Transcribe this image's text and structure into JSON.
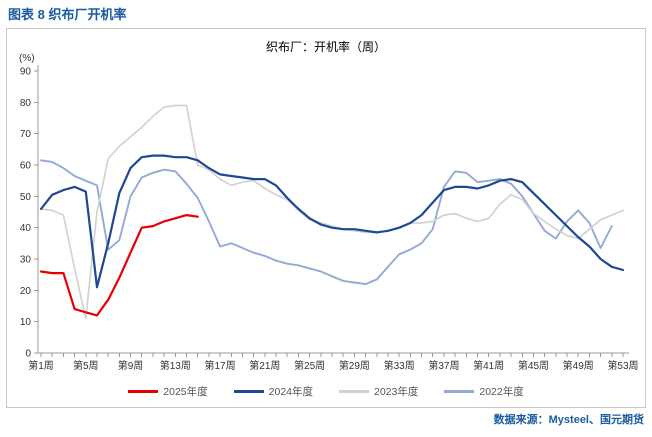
{
  "figure": {
    "title": "图表 8 织布厂开机率"
  },
  "chart": {
    "title": "织布厂：开机率（周）",
    "y_unit_label": "(%)"
  },
  "source": {
    "text": "数据来源：Mysteel、国元期货"
  },
  "colors": {
    "red_2025": "#e60000",
    "navy_2024": "#1f4795",
    "gray_2023": "#d2d2d2",
    "steel_2022": "#92aad6",
    "accent_text": "#1c5ca0",
    "axis": "#999999"
  },
  "chart_data": {
    "type": "line",
    "title": "织布厂：开机率（周）",
    "ylabel": "(%)",
    "ylim": [
      0,
      90
    ],
    "yticks": [
      0,
      10,
      20,
      30,
      40,
      50,
      60,
      70,
      80,
      90
    ],
    "x_total_weeks": 53,
    "xtick_weeks": [
      1,
      5,
      9,
      13,
      17,
      21,
      25,
      29,
      33,
      37,
      41,
      45,
      49,
      53
    ],
    "xtick_labels": [
      "第1周",
      "第5周",
      "第9周",
      "第13周",
      "第17周",
      "第21周",
      "第25周",
      "第29周",
      "第33周",
      "第37周",
      "第41周",
      "第45周",
      "第49周",
      "第53周"
    ],
    "grid": false,
    "legend_position": "bottom",
    "series": [
      {
        "name": "2025年度",
        "color": "#e60000",
        "start_week": 1,
        "values": [
          26,
          25.5,
          25.5,
          14,
          13,
          12,
          17,
          24,
          32,
          40,
          40.5,
          42,
          43,
          44,
          43.5
        ]
      },
      {
        "name": "2024年度",
        "color": "#1f4795",
        "start_week": 1,
        "values": [
          46,
          50.5,
          52,
          53,
          51.5,
          21,
          35,
          51,
          59,
          62.5,
          63,
          63,
          62.5,
          62.5,
          61.5,
          59,
          57,
          56.5,
          56,
          55.5,
          55.5,
          53.5,
          49.5,
          46,
          43,
          41,
          40,
          39.5,
          39.5,
          39,
          38.5,
          39,
          40,
          41.5,
          44,
          48,
          52,
          53,
          53,
          52.5,
          53.5,
          55,
          55.5,
          54.5,
          51,
          47.5,
          44,
          40.5,
          37,
          34,
          30,
          27.5,
          26.5
        ]
      },
      {
        "name": "2023年度",
        "color": "#d2d2d2",
        "start_week": 1,
        "values": [
          46,
          45.5,
          44,
          27,
          11,
          45,
          62,
          66,
          69,
          72,
          75.5,
          78.5,
          79,
          79,
          60,
          58.5,
          55.5,
          53.5,
          54.5,
          55,
          52.5,
          50.5,
          49,
          45.5,
          42.5,
          41.5,
          40.5,
          39.5,
          39,
          38.5,
          38.5,
          39,
          40,
          41.5,
          41.5,
          42,
          44,
          44.5,
          43,
          42,
          43,
          47.5,
          50.5,
          49,
          44.5,
          42,
          39.5,
          37.5,
          36.5,
          39.5,
          42.5,
          44,
          45.5
        ]
      },
      {
        "name": "2022年度",
        "color": "#92aad6",
        "start_week": 1,
        "values": [
          61.5,
          61,
          59,
          56.5,
          55,
          53.5,
          33,
          36,
          50,
          56,
          57.5,
          58.5,
          58,
          54,
          49.5,
          42,
          34,
          35,
          33.5,
          32,
          31,
          29.5,
          28.5,
          28,
          27,
          26,
          24.5,
          23,
          22.5,
          22,
          23.5,
          27.5,
          31.5,
          33,
          35,
          39.5,
          53,
          58,
          57.5,
          54.5,
          55,
          55.5,
          54,
          50,
          44.5,
          39,
          36.5,
          42,
          45.5,
          41.5,
          33.5,
          40.5
        ]
      }
    ]
  }
}
